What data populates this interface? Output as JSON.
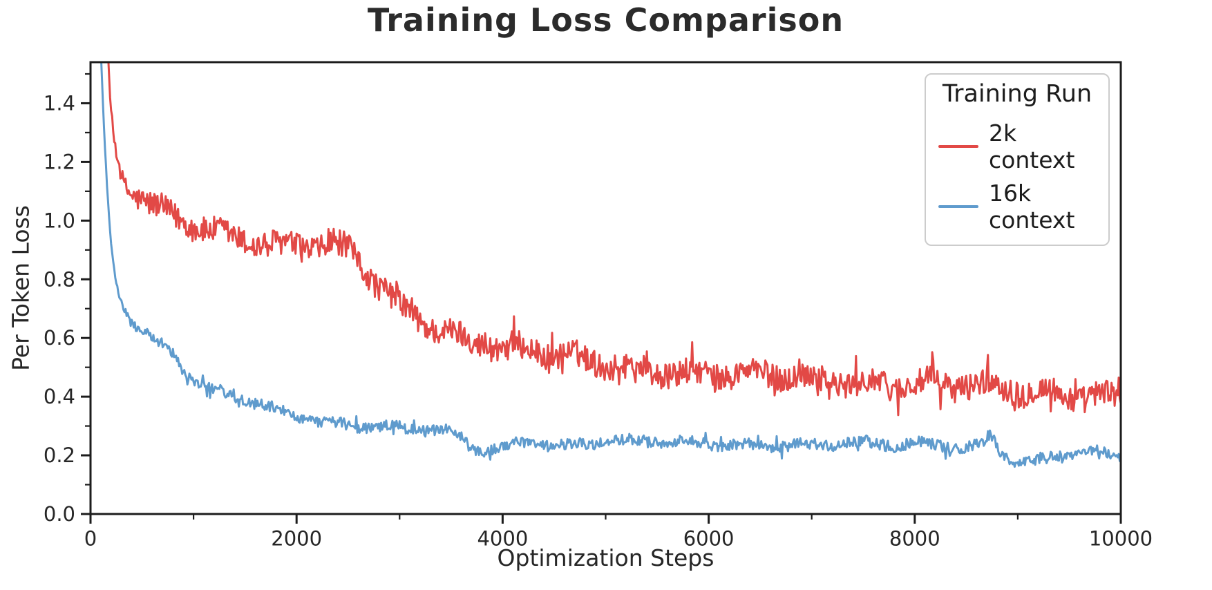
{
  "title": "Training Loss Comparison",
  "style": {
    "background": "#ffffff",
    "spine_color": "#1c1c1c",
    "text_color": "#262626",
    "legend_border_color": "#cccccc",
    "red": "#e24946",
    "blue": "#5f9bcd"
  },
  "chart_data": {
    "type": "line",
    "title": "Training Loss Comparison",
    "xlabel": "Optimization Steps",
    "ylabel": "Per Token Loss",
    "xlim": [
      0,
      10000
    ],
    "ylim": [
      0,
      1.54
    ],
    "grid": false,
    "x_ticks": [
      [
        0,
        "0"
      ],
      [
        2000,
        "2000"
      ],
      [
        4000,
        "4000"
      ],
      [
        6000,
        "6000"
      ],
      [
        8000,
        "8000"
      ],
      [
        10000,
        "10000"
      ]
    ],
    "y_ticks": [
      [
        0.0,
        "0.0"
      ],
      [
        0.2,
        "0.2"
      ],
      [
        0.4,
        "0.4"
      ],
      [
        0.6,
        "0.6"
      ],
      [
        0.8,
        "0.8"
      ],
      [
        1.0,
        "1.0"
      ],
      [
        1.2,
        "1.2"
      ],
      [
        1.4,
        "1.4"
      ]
    ],
    "x_minor_ticks": [
      1000,
      3000,
      5000,
      7000,
      9000
    ],
    "y_minor_ticks": [
      0.1,
      0.3,
      0.5,
      0.7,
      0.9,
      1.1,
      1.3,
      1.5
    ],
    "legend": {
      "title": "Training Run",
      "position": "upper right"
    },
    "series": [
      {
        "name": "2k context",
        "color": "#e24946",
        "noise_amplitude": 0.045,
        "trend": [
          [
            110,
            2.3
          ],
          [
            130,
            1.95
          ],
          [
            150,
            1.72
          ],
          [
            170,
            1.55
          ],
          [
            190,
            1.42
          ],
          [
            210,
            1.33
          ],
          [
            230,
            1.27
          ],
          [
            260,
            1.21
          ],
          [
            290,
            1.165
          ],
          [
            320,
            1.13
          ],
          [
            360,
            1.105
          ],
          [
            400,
            1.09
          ],
          [
            450,
            1.08
          ],
          [
            500,
            1.07
          ],
          [
            560,
            1.053
          ],
          [
            620,
            1.04
          ],
          [
            680,
            1.027
          ],
          [
            740,
            1.015
          ],
          [
            800,
            1.006
          ],
          [
            900,
            1.0
          ],
          [
            1000,
            0.988
          ],
          [
            1100,
            0.976
          ],
          [
            1200,
            0.965
          ],
          [
            1300,
            0.956
          ],
          [
            1400,
            0.95
          ],
          [
            1500,
            0.944
          ],
          [
            1600,
            0.935
          ],
          [
            1700,
            0.927
          ],
          [
            1800,
            0.921
          ],
          [
            1900,
            0.916
          ],
          [
            2000,
            0.914
          ],
          [
            2100,
            0.911
          ],
          [
            2200,
            0.908
          ],
          [
            2300,
            0.905
          ],
          [
            2400,
            0.903
          ],
          [
            2500,
            0.89
          ],
          [
            2600,
            0.856
          ],
          [
            2700,
            0.815
          ],
          [
            2800,
            0.775
          ],
          [
            2900,
            0.74
          ],
          [
            3000,
            0.71
          ],
          [
            3100,
            0.686
          ],
          [
            3200,
            0.666
          ],
          [
            3300,
            0.649
          ],
          [
            3400,
            0.634
          ],
          [
            3500,
            0.621
          ],
          [
            3600,
            0.61
          ],
          [
            3700,
            0.6
          ],
          [
            3800,
            0.59
          ],
          [
            3900,
            0.582
          ],
          [
            4000,
            0.575
          ],
          [
            4200,
            0.558
          ],
          [
            4400,
            0.544
          ],
          [
            4600,
            0.531
          ],
          [
            4800,
            0.52
          ],
          [
            5000,
            0.511
          ],
          [
            5200,
            0.503
          ],
          [
            5400,
            0.496
          ],
          [
            5600,
            0.49
          ],
          [
            5800,
            0.484
          ],
          [
            6000,
            0.478
          ],
          [
            6300,
            0.472
          ],
          [
            6600,
            0.467
          ],
          [
            6900,
            0.461
          ],
          [
            7200,
            0.456
          ],
          [
            7500,
            0.451
          ],
          [
            7800,
            0.447
          ],
          [
            8100,
            0.442
          ],
          [
            8400,
            0.436
          ],
          [
            8700,
            0.429
          ],
          [
            9000,
            0.423
          ],
          [
            9300,
            0.417
          ],
          [
            9600,
            0.411
          ],
          [
            9800,
            0.407
          ],
          [
            10000,
            0.402
          ]
        ]
      },
      {
        "name": "16k context",
        "color": "#5f9bcd",
        "noise_amplitude": 0.019,
        "trend": [
          [
            40,
            2.6
          ],
          [
            60,
            2.1
          ],
          [
            80,
            1.8
          ],
          [
            100,
            1.58
          ],
          [
            120,
            1.4
          ],
          [
            140,
            1.25
          ],
          [
            160,
            1.12
          ],
          [
            180,
            1.01
          ],
          [
            200,
            0.92
          ],
          [
            220,
            0.86
          ],
          [
            250,
            0.79
          ],
          [
            280,
            0.75
          ],
          [
            310,
            0.72
          ],
          [
            350,
            0.685
          ],
          [
            400,
            0.657
          ],
          [
            450,
            0.64
          ],
          [
            500,
            0.626
          ],
          [
            550,
            0.614
          ],
          [
            600,
            0.6
          ],
          [
            650,
            0.59
          ],
          [
            700,
            0.578
          ],
          [
            750,
            0.566
          ],
          [
            800,
            0.548
          ],
          [
            850,
            0.524
          ],
          [
            900,
            0.497
          ],
          [
            950,
            0.473
          ],
          [
            1000,
            0.455
          ],
          [
            1100,
            0.433
          ],
          [
            1200,
            0.419
          ],
          [
            1300,
            0.409
          ],
          [
            1400,
            0.4
          ],
          [
            1500,
            0.39
          ],
          [
            1600,
            0.376
          ],
          [
            1700,
            0.363
          ],
          [
            1800,
            0.352
          ],
          [
            1900,
            0.342
          ],
          [
            2000,
            0.333
          ],
          [
            2100,
            0.324
          ],
          [
            2200,
            0.318
          ],
          [
            2300,
            0.314
          ],
          [
            2400,
            0.311
          ],
          [
            2500,
            0.308
          ],
          [
            2600,
            0.305
          ],
          [
            2700,
            0.302
          ],
          [
            2800,
            0.3
          ],
          [
            2900,
            0.297
          ],
          [
            3000,
            0.294
          ],
          [
            3100,
            0.291
          ],
          [
            3200,
            0.288
          ],
          [
            3300,
            0.285
          ],
          [
            3400,
            0.281
          ],
          [
            3500,
            0.275
          ],
          [
            3550,
            0.268
          ],
          [
            3600,
            0.253
          ],
          [
            3650,
            0.237
          ],
          [
            3700,
            0.226
          ],
          [
            3750,
            0.219
          ],
          [
            3800,
            0.216
          ],
          [
            3900,
            0.221
          ],
          [
            4000,
            0.228
          ],
          [
            4100,
            0.237
          ],
          [
            4200,
            0.243
          ],
          [
            4300,
            0.245
          ],
          [
            4400,
            0.242
          ],
          [
            4500,
            0.238
          ],
          [
            4600,
            0.237
          ],
          [
            4700,
            0.24
          ],
          [
            4800,
            0.244
          ],
          [
            4900,
            0.248
          ],
          [
            5000,
            0.25
          ],
          [
            5200,
            0.249
          ],
          [
            5400,
            0.246
          ],
          [
            5600,
            0.242
          ],
          [
            5800,
            0.24
          ],
          [
            6000,
            0.24
          ],
          [
            6200,
            0.238
          ],
          [
            6400,
            0.236
          ],
          [
            6600,
            0.236
          ],
          [
            6800,
            0.237
          ],
          [
            7000,
            0.238
          ],
          [
            7200,
            0.24
          ],
          [
            7400,
            0.239
          ],
          [
            7600,
            0.236
          ],
          [
            7800,
            0.233
          ],
          [
            8000,
            0.238
          ],
          [
            8200,
            0.236
          ],
          [
            8400,
            0.231
          ],
          [
            8500,
            0.232
          ],
          [
            8600,
            0.238
          ],
          [
            8680,
            0.248
          ],
          [
            8730,
            0.272
          ],
          [
            8760,
            0.258
          ],
          [
            8800,
            0.232
          ],
          [
            8850,
            0.208
          ],
          [
            8900,
            0.196
          ],
          [
            9000,
            0.185
          ],
          [
            9100,
            0.176
          ],
          [
            9200,
            0.181
          ],
          [
            9300,
            0.189
          ],
          [
            9400,
            0.195
          ],
          [
            9500,
            0.199
          ],
          [
            9600,
            0.203
          ],
          [
            9700,
            0.205
          ],
          [
            9800,
            0.205
          ],
          [
            9900,
            0.202
          ],
          [
            10000,
            0.2
          ]
        ]
      }
    ]
  }
}
